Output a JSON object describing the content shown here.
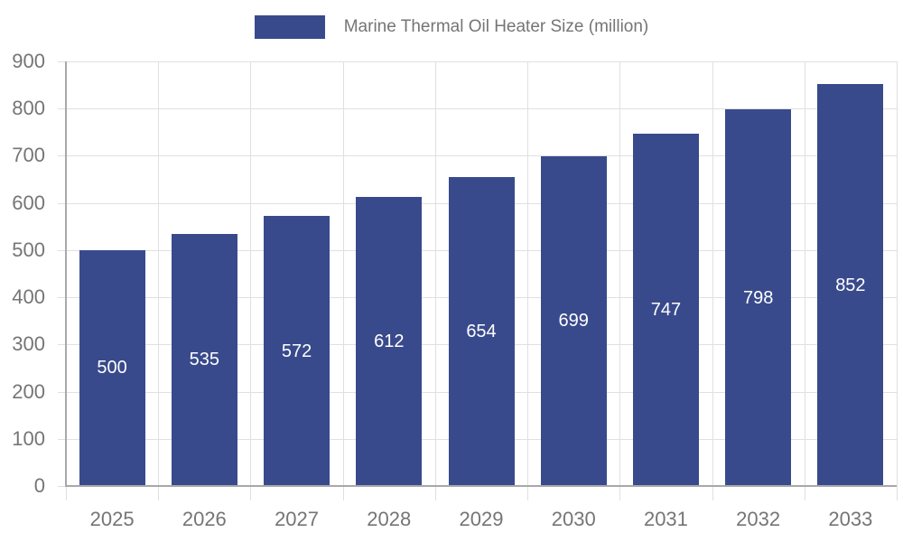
{
  "legend": {
    "label": "Marine Thermal Oil Heater Size (million)"
  },
  "chart_data": {
    "type": "bar",
    "title": "Marine Thermal Oil Heater Size (million)",
    "categories": [
      "2025",
      "2026",
      "2027",
      "2028",
      "2029",
      "2030",
      "2031",
      "2032",
      "2033"
    ],
    "values": [
      500,
      535,
      572,
      612,
      654,
      699,
      747,
      798,
      852
    ],
    "value_labels_shown": true,
    "xlabel": "",
    "ylabel": "",
    "ylim": [
      0,
      900
    ],
    "ytick_step": 100,
    "grid": true,
    "legend_position": "top",
    "bar_color": "#394A8C",
    "grid_color": "#E0E0E0",
    "axis_line_color": "#A8A8A8",
    "axis_text_color": "#757575",
    "value_label_color": "#FFFFFF",
    "background_color": "#FFFFFF"
  }
}
